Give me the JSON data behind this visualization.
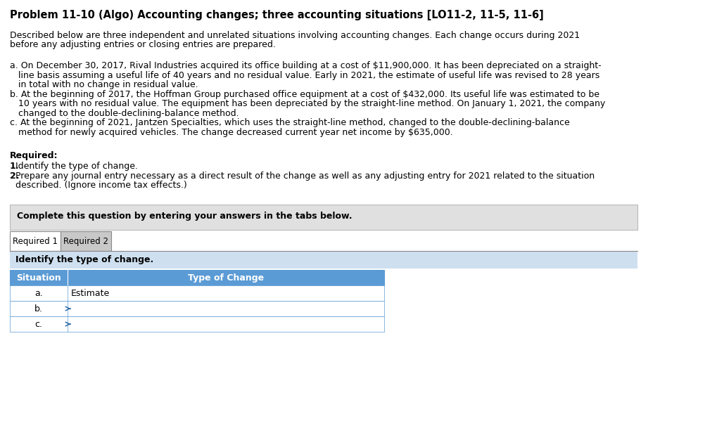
{
  "title": "Problem 11-10 (Algo) Accounting changes; three accounting situations [LO11-2, 11-5, 11-6]",
  "intro_line1": "Described below are three independent and unrelated situations involving accounting changes. Each change occurs during 2021",
  "intro_line2": "before any adjusting entries or closing entries are prepared.",
  "sit_a_line1": "a. On December 30, 2017, Rival Industries acquired its office building at a cost of $11,900,000. It has been depreciated on a straight-",
  "sit_a_line2": "   line basis assuming a useful life of 40 years and no residual value. Early in 2021, the estimate of useful life was revised to 28 years",
  "sit_a_line3": "   in total with no change in residual value.",
  "sit_b_line1": "b. At the beginning of 2017, the Hoffman Group purchased office equipment at a cost of $432,000. Its useful life was estimated to be",
  "sit_b_line2": "   10 years with no residual value. The equipment has been depreciated by the straight-line method. On January 1, 2021, the company",
  "sit_b_line3": "   changed to the double-declining-balance method.",
  "sit_c_line1": "c. At the beginning of 2021, Jantzen Specialties, which uses the straight-line method, changed to the double-declining-balance",
  "sit_c_line2": "   method for newly acquired vehicles. The change decreased current year net income by $635,000.",
  "required_label": "Required:",
  "req1_num": "1.",
  "req1_text": " Identify the type of change.",
  "req2_num": "2.",
  "req2_line1": " Prepare any journal entry necessary as a direct result of the change as well as any adjusting entry for 2021 related to the situation",
  "req2_line2": "described. (Ignore income tax effects.)",
  "complete_text": "Complete this question by entering your answers in the tabs below.",
  "tab1": "Required 1",
  "tab2": "Required 2",
  "identify_text": "Identify the type of change.",
  "table_header_situation": "Situation",
  "table_header_type": "Type of Change",
  "row_a_situation": "a.",
  "row_a_type": "Estimate",
  "row_b_situation": "b.",
  "row_c_situation": "c.",
  "bg_color": "#ffffff",
  "title_color": "#000000",
  "complete_box_bg": "#e0e0e0",
  "tab_active_bg": "#ffffff",
  "tab_inactive_bg": "#c8c8c8",
  "identify_bg": "#cee0f0",
  "table_header_bg": "#5b9bd5",
  "table_row_bg": "#ffffff",
  "table_border_color": "#5b9bd5",
  "title_fontsize": 10.5,
  "body_fontsize": 9.0,
  "small_fontsize": 8.5
}
